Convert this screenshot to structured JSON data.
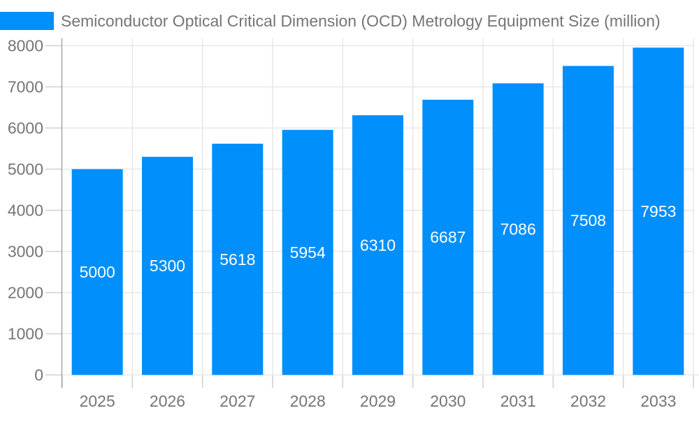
{
  "chart_data": {
    "type": "bar",
    "series_name": "Semiconductor Optical Critical Dimension (OCD) Metrology Equipment Size (million)",
    "categories": [
      "2025",
      "2026",
      "2027",
      "2028",
      "2029",
      "2030",
      "2031",
      "2032",
      "2033"
    ],
    "values": [
      5000,
      5300,
      5618,
      5954,
      6310,
      6687,
      7086,
      7508,
      7953
    ],
    "ylim": [
      0,
      8000
    ],
    "yticks": [
      0,
      1000,
      2000,
      3000,
      4000,
      5000,
      6000,
      7000,
      8000
    ],
    "grid": true,
    "legend_position": "top-left",
    "bar_color": "#008FFB",
    "value_label_color": "#FFFFFF",
    "axis_label_color": "#757575",
    "grid_color": "#E7E7E7",
    "axis_line_color": "#A6A6A6",
    "tick_color": "#CFCFCF",
    "background_color": "#FFFFFF"
  }
}
